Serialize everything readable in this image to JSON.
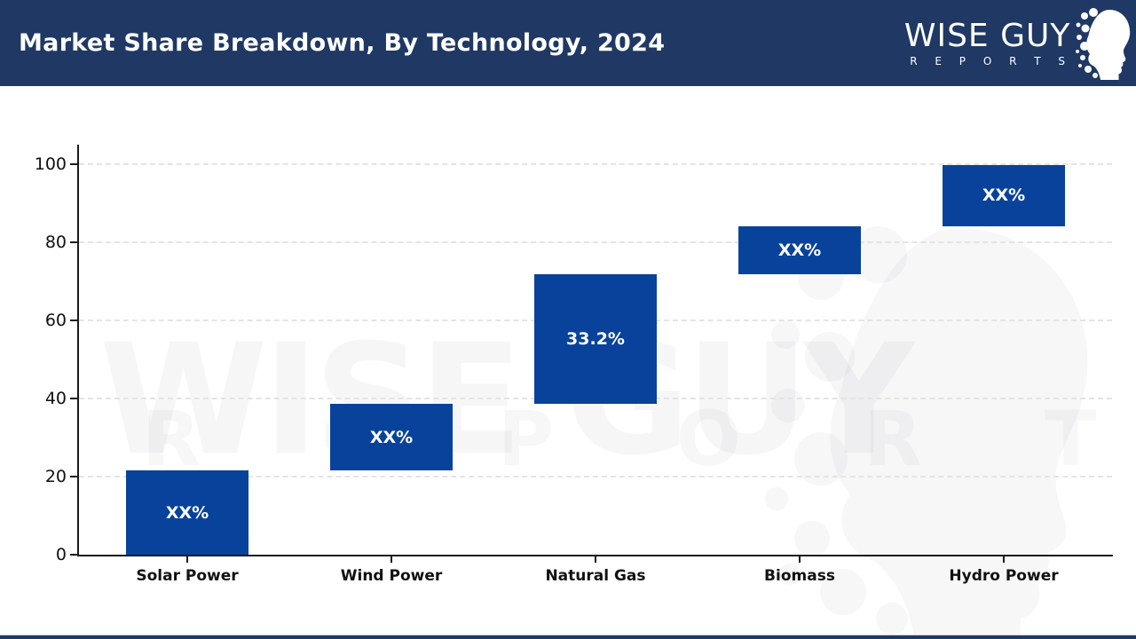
{
  "header": {
    "title": "Market Share Breakdown, By Technology, 2024",
    "bg_color": "#1f3864",
    "logo": {
      "line1": "WISE GUY",
      "line2": "R E P O R T S",
      "face_icon": "dotted-head-profile"
    }
  },
  "watermark": {
    "line1": "WISE GUY",
    "line2": "R E P O R T S",
    "face_icon": "dotted-head-profile"
  },
  "footer": {
    "bar_color": "#1f3864"
  },
  "chart_data": {
    "type": "bar",
    "subtype": "floating-waterfall",
    "title": "Market Share Breakdown, By Technology, 2024",
    "categories": [
      "Solar Power",
      "Wind Power",
      "Natural Gas",
      "Biomass",
      "Hydro Power"
    ],
    "bars": [
      {
        "category": "Solar Power",
        "start": 0,
        "end": 21.5,
        "label": "XX%"
      },
      {
        "category": "Wind Power",
        "start": 21.5,
        "end": 38.7,
        "label": "XX%"
      },
      {
        "category": "Natural Gas",
        "start": 38.7,
        "end": 71.9,
        "label": "33.2%"
      },
      {
        "category": "Biomass",
        "start": 71.9,
        "end": 84.1,
        "label": "XX%"
      },
      {
        "category": "Hydro Power",
        "start": 84.1,
        "end": 99.8,
        "label": "XX%"
      }
    ],
    "ylabel": "",
    "xlabel": "",
    "ylim": [
      0,
      100
    ],
    "yticks": [
      0,
      20,
      40,
      60,
      80,
      100
    ],
    "grid": "horizontal-dashed",
    "grid_color": "#e4e4e4",
    "bar_color": "#08429b",
    "bar_label_color": "#ffffff",
    "axis_color": "#1a1a1a",
    "legend": "none"
  }
}
